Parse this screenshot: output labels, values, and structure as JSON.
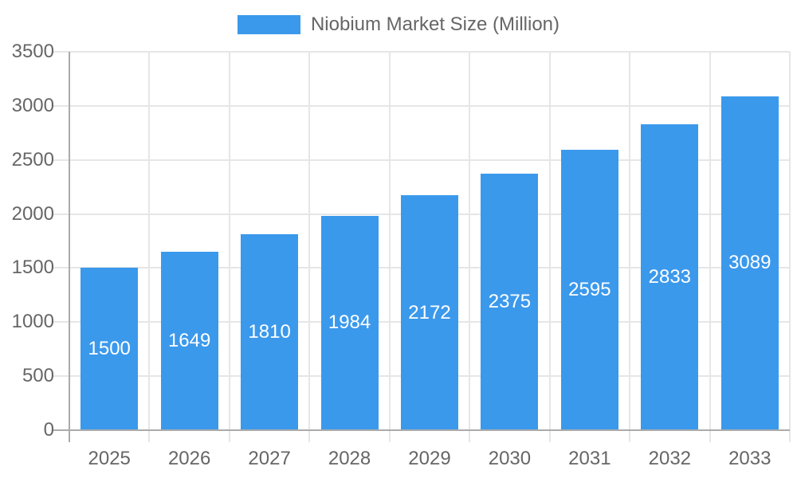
{
  "legend": {
    "label": "Niobium Market Size (Million)"
  },
  "chart_data": {
    "type": "bar",
    "title": "",
    "legend_entries": [
      "Niobium Market Size (Million)"
    ],
    "legend_position": "top",
    "categories": [
      "2025",
      "2026",
      "2027",
      "2028",
      "2029",
      "2030",
      "2031",
      "2032",
      "2033"
    ],
    "series": [
      {
        "name": "Niobium Market Size (Million)",
        "values": [
          1500,
          1649,
          1810,
          1984,
          2172,
          2375,
          2595,
          2833,
          3089
        ]
      }
    ],
    "data_labels_shown": true,
    "xlabel": "",
    "ylabel": "",
    "ylim": [
      0,
      3500
    ],
    "ytick_step": 500,
    "yticks": [
      0,
      500,
      1000,
      1500,
      2000,
      2500,
      3000,
      3500
    ],
    "grid": true,
    "colors": {
      "bar": "#3B99EC",
      "bar_value_label": "#FFFFFF",
      "gridline": "#E6E6E6",
      "axis_line": "#ABABAB",
      "tick_text": "#666666",
      "legend_text": "#666666",
      "background": "#FFFFFF"
    }
  }
}
